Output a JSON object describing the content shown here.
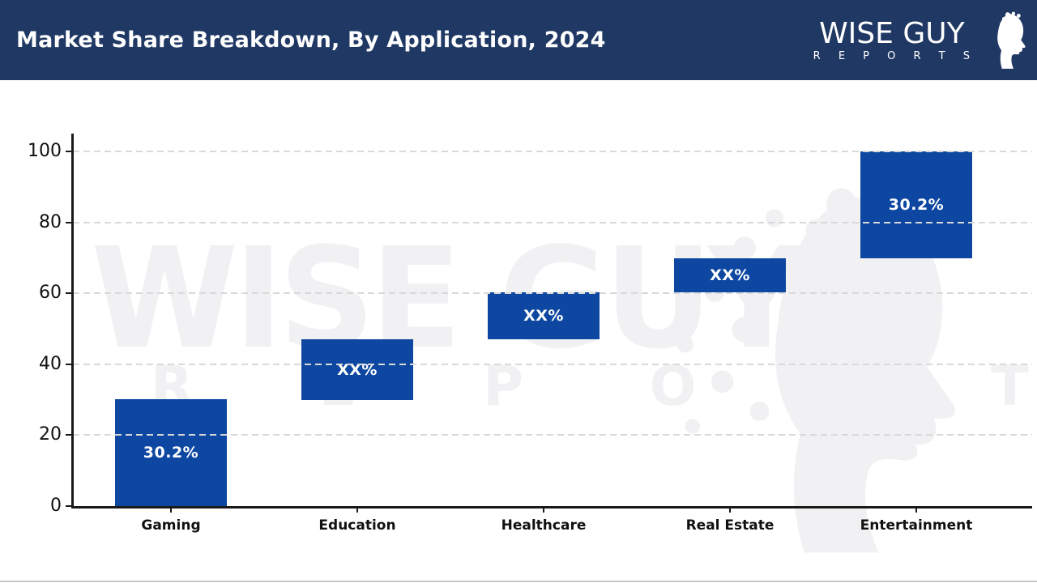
{
  "header": {
    "title": "Market Share Breakdown, By Application, 2024",
    "bg_color": "#203864",
    "logo": {
      "line1": "WISE GUY",
      "line2": "R E P O R T S"
    }
  },
  "watermark": {
    "line1": "WISE GUY",
    "line2": "R E P O R T S",
    "color": "#f1f1f3"
  },
  "chart_data": {
    "type": "bar",
    "subtype": "waterfall",
    "title": "Market Share Breakdown, By Application, 2024",
    "categories": [
      "Gaming",
      "Education",
      "Healthcare",
      "Real Estate",
      "Entertainment"
    ],
    "segments": [
      {
        "category": "Gaming",
        "start": 0,
        "end": 30.2,
        "label": "30.2%"
      },
      {
        "category": "Education",
        "start": 30.0,
        "end": 47.0,
        "label": "XX%"
      },
      {
        "category": "Healthcare",
        "start": 47.0,
        "end": 60.3,
        "label": "XX%"
      },
      {
        "category": "Real Estate",
        "start": 60.3,
        "end": 69.9,
        "label": "XX%"
      },
      {
        "category": "Entertainment",
        "start": 69.9,
        "end": 100.1,
        "label": "30.2%"
      }
    ],
    "y_ticks": [
      0,
      20,
      40,
      60,
      80,
      100
    ],
    "ylim": [
      0,
      105
    ],
    "xlabel": "",
    "ylabel": "",
    "grid": true,
    "gridline_style": "dashed",
    "gridline_color": "#d9d9d9",
    "bar_color": "#0d47a1",
    "bar_label_color": "#ffffff",
    "axis_color": "#1a1a1a",
    "legend": "none"
  }
}
